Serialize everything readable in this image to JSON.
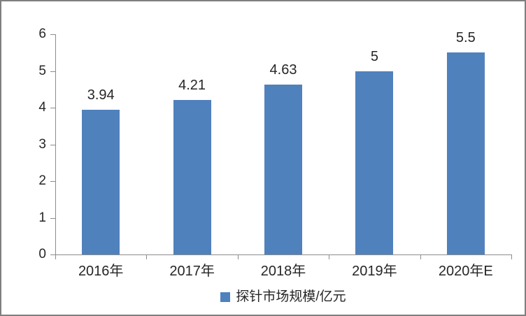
{
  "chart_data": {
    "type": "bar",
    "categories": [
      "2016年",
      "2017年",
      "2018年",
      "2019年",
      "2020年E"
    ],
    "values": [
      3.94,
      4.21,
      4.63,
      5,
      5.5
    ],
    "value_labels": [
      "3.94",
      "4.21",
      "4.63",
      "5",
      "5.5"
    ],
    "title": "",
    "xlabel": "",
    "ylabel": "",
    "ylim": [
      0,
      6
    ],
    "yticks": [
      "0",
      "1",
      "2",
      "3",
      "4",
      "5",
      "6"
    ],
    "grid": false,
    "legend_position": "bottom",
    "bar_color": "#4F81BD",
    "axis_color": "#8C8C8C",
    "text_color": "#262626",
    "frame_border_color": "#7F7F7F",
    "background_color": "#FFFFFF"
  },
  "legend": {
    "label": "探针市场规模/亿元",
    "swatch_color": "#4F81BD"
  }
}
